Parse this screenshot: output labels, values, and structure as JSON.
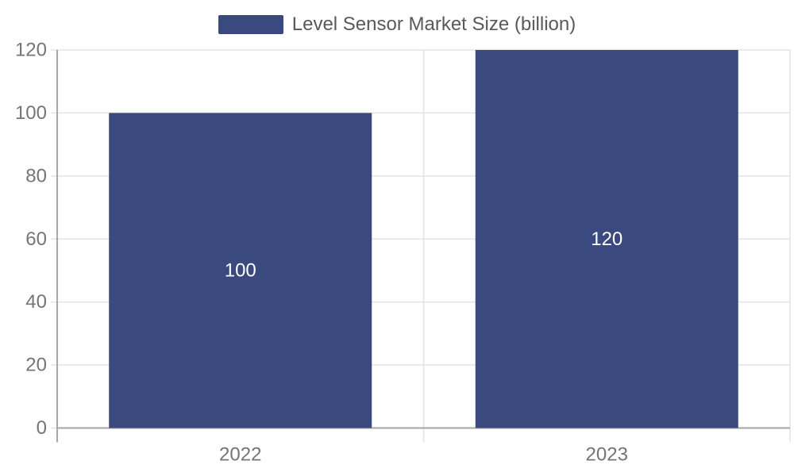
{
  "chart_data": {
    "type": "bar",
    "title": "",
    "categories": [
      "2022",
      "2023"
    ],
    "series": [
      {
        "name": "Level Sensor Market Size (billion)",
        "values": [
          100,
          120
        ]
      }
    ],
    "bar_value_labels": [
      "100",
      "120"
    ],
    "y_tick_labels": [
      "0",
      "20",
      "40",
      "60",
      "80",
      "100",
      "120"
    ],
    "ylim": [
      0,
      120
    ],
    "y_tick_step": 20,
    "xlabel": "",
    "ylabel": "",
    "grid": "horizontal and category-boundary gridlines on",
    "legend_position": "top-center"
  },
  "colors": {
    "bar": "#3A497E",
    "grid": "#E3E3E3",
    "axis": "#A6A6A6",
    "tick_label": "#757575",
    "legend_label": "#595959",
    "bar_label": "#FFFFFF",
    "background": "#FFFFFF"
  }
}
